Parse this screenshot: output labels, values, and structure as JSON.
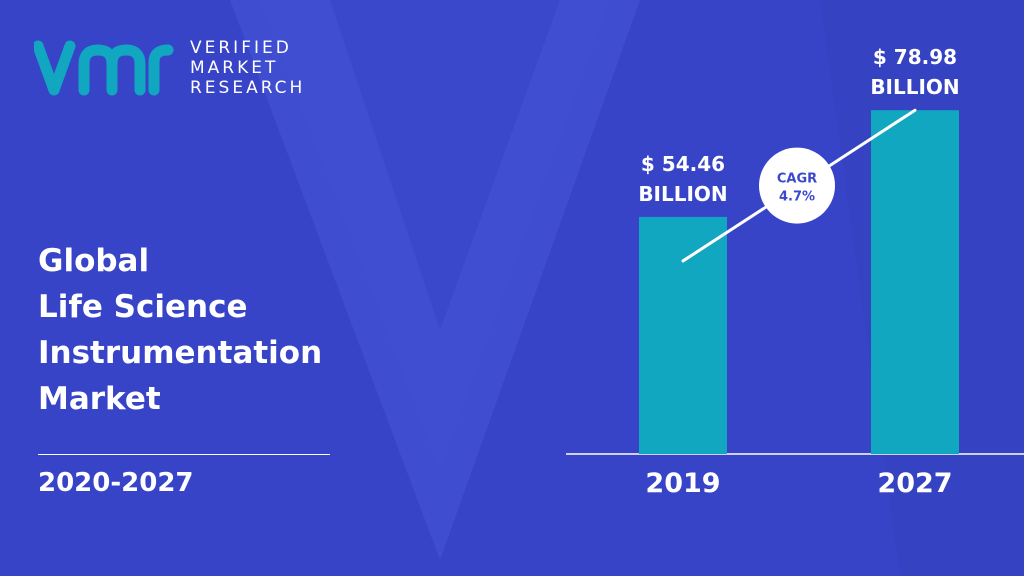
{
  "brand": {
    "name_line1": "VERIFIED",
    "name_line2": "MARKET",
    "name_line3": "RESEARCH"
  },
  "title_lines": [
    "Global",
    "Life Science",
    "Instrumentation",
    "Market"
  ],
  "period": "2020-2027",
  "colors": {
    "background": "#3a48cc",
    "bar": "#12a7c0",
    "logo": "#12a7c0",
    "text": "#ffffff",
    "cagr_text": "#3a48cc"
  },
  "chart_data": {
    "type": "bar",
    "categories": [
      "2019",
      "2027"
    ],
    "values": [
      54.46,
      78.98
    ],
    "value_labels": [
      [
        "$ 54.46",
        "BILLION"
      ],
      [
        "$ 78.98",
        "BILLION"
      ]
    ],
    "unit": "USD billion",
    "ylim": [
      0,
      85
    ],
    "grid": false,
    "annotation": {
      "label": "CAGR",
      "value": "4.7%"
    }
  }
}
